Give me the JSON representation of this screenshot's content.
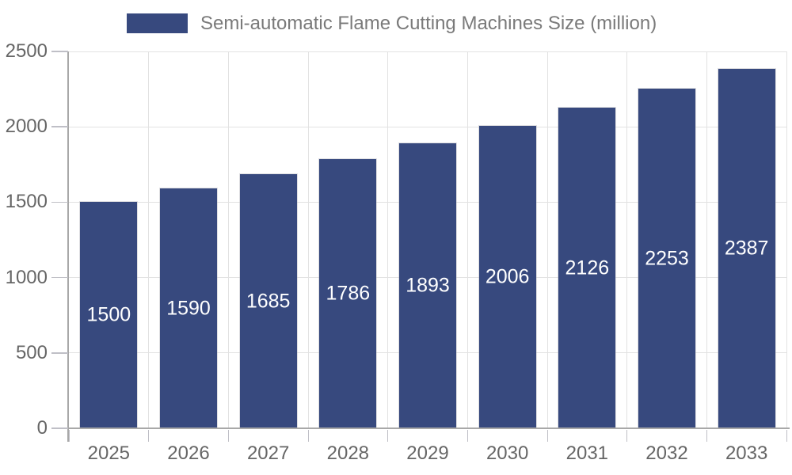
{
  "chart_data": {
    "type": "bar",
    "series_name": "Semi-automatic Flame Cutting Machines Size (million)",
    "categories": [
      "2025",
      "2026",
      "2027",
      "2028",
      "2029",
      "2030",
      "2031",
      "2032",
      "2033"
    ],
    "values": [
      1500,
      1590,
      1685,
      1786,
      1893,
      2006,
      2126,
      2253,
      2387
    ],
    "yticks": [
      0,
      500,
      1000,
      1500,
      2000,
      2500
    ],
    "ytick_labels": [
      "0",
      "500",
      "1000",
      "1500",
      "2000",
      "2500"
    ],
    "ylim": [
      0,
      2500
    ],
    "xlabel": "",
    "ylabel": "",
    "grid": true,
    "legend_position": "top",
    "bar_color": "#37497E",
    "value_label_color": "#ffffff",
    "axis_color": "#a8a8a8",
    "grid_color": "#e2e2e2",
    "tick_label_color": "#666666",
    "legend_text_color": "#7a7a7a"
  }
}
